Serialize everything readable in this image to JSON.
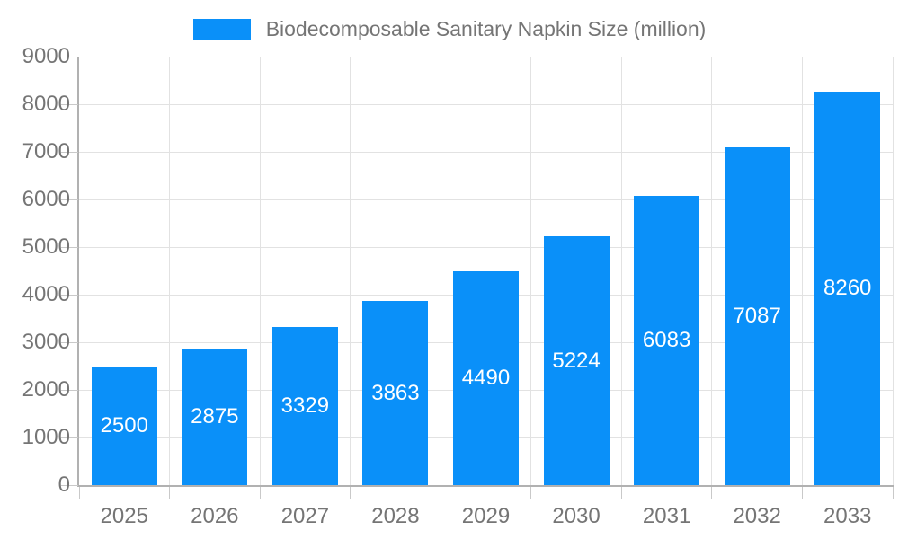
{
  "chart_data": {
    "type": "bar",
    "title": "Biodecomposable Sanitary Napkin Size (million)",
    "categories": [
      "2025",
      "2026",
      "2027",
      "2028",
      "2029",
      "2030",
      "2031",
      "2032",
      "2033"
    ],
    "values": [
      2500,
      2875,
      3329,
      3863,
      4490,
      5224,
      6083,
      7087,
      8260
    ],
    "ylim": [
      0,
      9000
    ],
    "ytick_step": 1000,
    "ytick_labels": [
      "0",
      "1000",
      "2000",
      "3000",
      "4000",
      "5000",
      "6000",
      "7000",
      "8000",
      "9000"
    ],
    "grid": true,
    "legend_position": "top",
    "value_labels": "inside-center-white",
    "colors": {
      "bar": "#0A90F9",
      "bar_label": "#FFFFFF",
      "axis_text": "#757575",
      "grid_line": "#E2E2E2",
      "axis_line": "#B1B1B1",
      "tick": "#C9C9C9",
      "background": "#FFFFFF"
    }
  }
}
